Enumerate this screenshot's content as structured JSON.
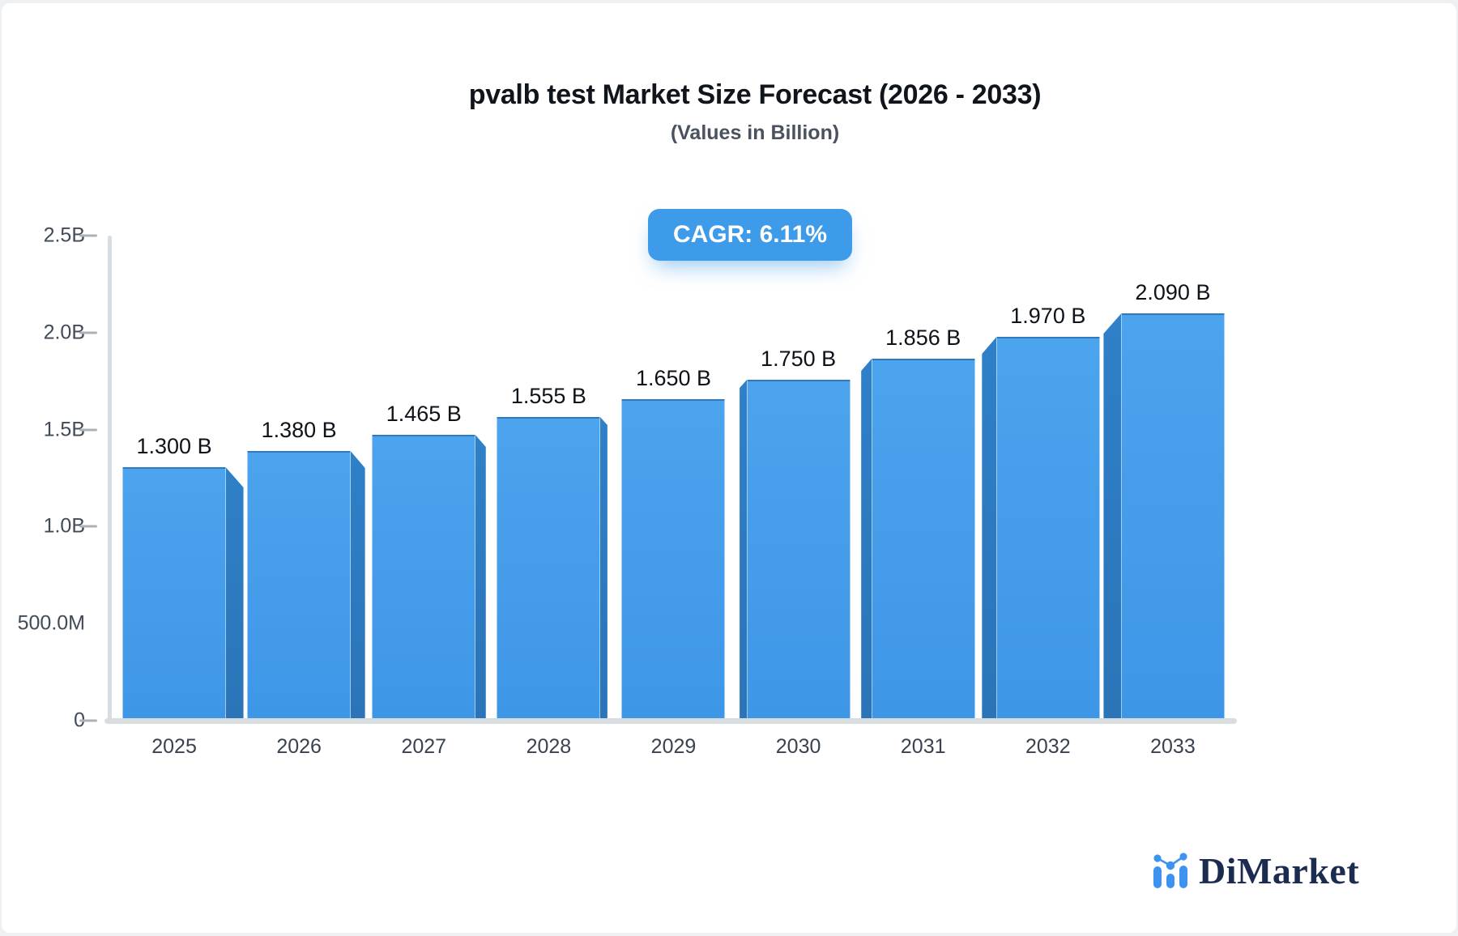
{
  "page": {
    "background": "#eef1f4",
    "card_background": "#ffffff"
  },
  "header": {
    "title": "pvalb test Market Size Forecast (2026 - 2033)",
    "subtitle": "(Values in Billion)"
  },
  "badge": {
    "label": "CAGR: 6.11%",
    "background": "#3e9be9",
    "text_color": "#ffffff"
  },
  "chart_data": {
    "type": "bar",
    "title": "pvalb test Market Size Forecast (2026 - 2033)",
    "subtitle": "(Values in Billion)",
    "cagr": "6.11%",
    "categories": [
      "2025",
      "2026",
      "2027",
      "2028",
      "2029",
      "2030",
      "2031",
      "2032",
      "2033"
    ],
    "values": [
      1.3,
      1.38,
      1.465,
      1.555,
      1.65,
      1.75,
      1.856,
      1.97,
      2.09
    ],
    "value_labels": [
      "1.300 B",
      "1.380 B",
      "1.465 B",
      "1.555 B",
      "1.650 B",
      "1.750 B",
      "1.856 B",
      "1.970 B",
      "2.090 B"
    ],
    "xlabel": "",
    "ylabel": "",
    "ylim": [
      0,
      2.5
    ],
    "grid": false,
    "legend": "none",
    "yticks": [
      {
        "label": "2.5B",
        "value": 2.5,
        "dash": true
      },
      {
        "label": "2.0B",
        "value": 2.0,
        "dash": true
      },
      {
        "label": "1.5B",
        "value": 1.5,
        "dash": true
      },
      {
        "label": "1.0B",
        "value": 1.0,
        "dash": true
      },
      {
        "label": "500.0M",
        "value": 0.5,
        "dash": false
      },
      {
        "label": "0",
        "value": 0.0,
        "dash": true
      }
    ],
    "colors": {
      "bar_front_top": "#4ca4ee",
      "bar_front_bottom": "#3e96e7",
      "bar_side_top": "#2f80c8",
      "bar_side_bottom": "#2b74b8",
      "axis": "#d8dde2",
      "tick": "#aab2bb",
      "y_label": "#414b57",
      "x_label": "#39424e",
      "value_label": "#0e1319"
    }
  },
  "logo": {
    "text": "DiMarket",
    "text_color": "#1c2c50",
    "icon": "bar-chart-trend-icon",
    "icon_color": "#3e93f0"
  }
}
